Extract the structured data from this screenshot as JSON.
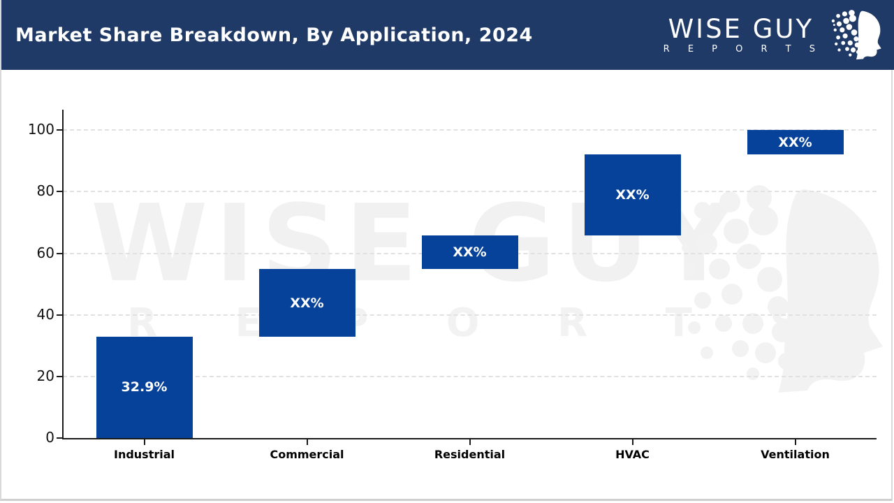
{
  "header": {
    "title": "Market Share Breakdown, By Application, 2024",
    "bg_color": "#203a68",
    "logo": {
      "line1": "WISE GUY",
      "line2": "R E P O R T S"
    }
  },
  "watermark": {
    "line1": "WISE GUY",
    "line2": "R E P O R T S"
  },
  "chart_data": {
    "type": "bar",
    "subtype": "waterfall",
    "title": "Market Share Breakdown, By Application, 2024",
    "xlabel": "",
    "ylabel": "",
    "ylim": [
      0,
      100
    ],
    "yticks": [
      0,
      20,
      40,
      60,
      80,
      100
    ],
    "grid": "horizontal-dashed",
    "legend": "none",
    "bar_color": "#07429a",
    "bar_label_color": "#ffffff",
    "categories": [
      "Industrial",
      "Commercial",
      "Residential",
      "HVAC",
      "Ventilation"
    ],
    "segments": [
      {
        "category": "Industrial",
        "start": 0,
        "end": 32.9,
        "label": "32.9%"
      },
      {
        "category": "Commercial",
        "start": 32.9,
        "end": 54.9,
        "label": "XX%"
      },
      {
        "category": "Residential",
        "start": 55.0,
        "end": 65.9,
        "label": "XX%"
      },
      {
        "category": "HVAC",
        "start": 65.9,
        "end": 92.1,
        "label": "XX%"
      },
      {
        "category": "Ventilation",
        "start": 92.1,
        "end": 100.0,
        "label": "XX%"
      }
    ]
  }
}
